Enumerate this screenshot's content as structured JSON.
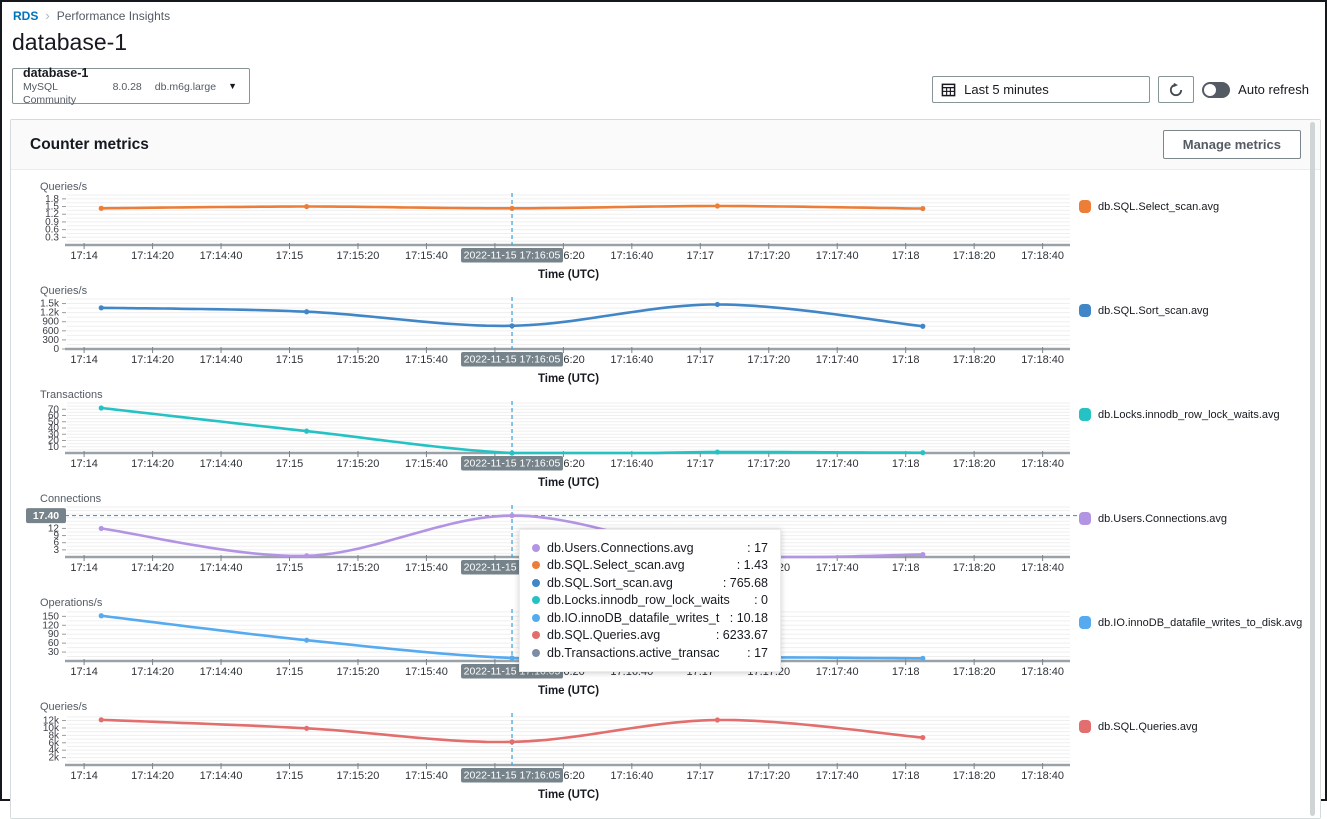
{
  "breadcrumb": {
    "root": "RDS",
    "separator": "›",
    "current": "Performance Insights"
  },
  "page": {
    "title": "database-1"
  },
  "instance_selector": {
    "name": "database-1",
    "engine": "MySQL Community",
    "version": "8.0.28",
    "instance_class": "db.m6g.large",
    "caret": "▼"
  },
  "controls": {
    "time_range": "Last 5 minutes",
    "auto_refresh_label": "Auto refresh"
  },
  "panel": {
    "title": "Counter metrics",
    "manage_button": "Manage metrics"
  },
  "crosshair": {
    "timestamp_label": "2022-11-15 17:16:05",
    "color": "#3aa0d8",
    "badge_color": "#76838a"
  },
  "tooltip": {
    "rows": [
      {
        "color": "#b394e3",
        "name": "db.Users.Connections.avg",
        "value": ": 17"
      },
      {
        "color": "#ec7e38",
        "name": "db.SQL.Select_scan.avg",
        "value": ": 1.43"
      },
      {
        "color": "#4186c6",
        "name": "db.SQL.Sort_scan.avg",
        "value": ": 765.68"
      },
      {
        "color": "#25c2c4",
        "name": "db.Locks.innodb_row_lock_waits",
        "value": ": 0"
      },
      {
        "color": "#55aaf0",
        "name": "db.IO.innoDB_datafile_writes_t",
        "value": ": 10.18"
      },
      {
        "color": "#e26e6e",
        "name": "db.SQL.Queries.avg",
        "value": ": 6233.67"
      },
      {
        "color": "#7d8ca6",
        "name": "db.Transactions.active_transac",
        "value": ": 17"
      }
    ]
  },
  "chart_data": [
    {
      "type": "line",
      "ylabel": "Queries/s",
      "xlabel": "Time (UTC)",
      "ylim": [
        0,
        1.95
      ],
      "y_ticks": [
        0.3,
        0.6,
        0.9,
        1.2,
        1.5,
        1.8
      ],
      "y_tick_labels": [
        "0.3",
        "0.6",
        "0.9",
        "1.2",
        "1.5",
        "1.8"
      ],
      "x_tick_seconds": [
        0,
        20,
        40,
        60,
        80,
        100,
        120,
        140,
        160,
        180,
        200,
        220,
        240,
        260,
        280
      ],
      "x_tick_labels": [
        "17:14",
        "17:14:20",
        "17:14:40",
        "17:15",
        "17:15:20",
        "17:15:40",
        "17:16",
        "17:16:20",
        "17:16:40",
        "17:17",
        "17:17:20",
        "17:17:40",
        "17:18",
        "17:18:20",
        "17:18:40"
      ],
      "crosshair_x_seconds": 125,
      "series": [
        {
          "name": "db.SQL.Select_scan.avg",
          "color": "#ec7e38",
          "x_seconds": [
            5,
            65,
            125,
            185,
            245
          ],
          "values": [
            1.43,
            1.5,
            1.43,
            1.52,
            1.42
          ]
        }
      ]
    },
    {
      "type": "line",
      "ylabel": "Queries/s",
      "xlabel": "Time (UTC)",
      "ylim": [
        0,
        1650
      ],
      "y_ticks": [
        0,
        300,
        600,
        900,
        1200,
        1500
      ],
      "y_tick_labels": [
        "0",
        "300",
        "600",
        "900",
        "1.2k",
        "1.5k"
      ],
      "x_tick_seconds": [
        0,
        20,
        40,
        60,
        80,
        100,
        120,
        140,
        160,
        180,
        200,
        220,
        240,
        260,
        280
      ],
      "x_tick_labels": [
        "17:14",
        "17:14:20",
        "17:14:40",
        "17:15",
        "17:15:20",
        "17:15:40",
        "17:16",
        "17:16:20",
        "17:16:40",
        "17:17",
        "17:17:20",
        "17:17:40",
        "17:18",
        "17:18:20",
        "17:18:40"
      ],
      "crosshair_x_seconds": 125,
      "series": [
        {
          "name": "db.SQL.Sort_scan.avg",
          "color": "#4186c6",
          "x_seconds": [
            5,
            65,
            125,
            185,
            245
          ],
          "values": [
            1360,
            1230,
            765.68,
            1470,
            750
          ]
        }
      ]
    },
    {
      "type": "line",
      "ylabel": "Transactions",
      "xlabel": "Time (UTC)",
      "ylim": [
        0,
        80
      ],
      "y_ticks": [
        10,
        20,
        30,
        40,
        50,
        60,
        70
      ],
      "y_tick_labels": [
        "10",
        "20",
        "30",
        "40",
        "50",
        "60",
        "70"
      ],
      "x_tick_seconds": [
        0,
        20,
        40,
        60,
        80,
        100,
        120,
        140,
        160,
        180,
        200,
        220,
        240,
        260,
        280
      ],
      "x_tick_labels": [
        "17:14",
        "17:14:20",
        "17:14:40",
        "17:15",
        "17:15:20",
        "17:15:40",
        "17:16",
        "17:16:20",
        "17:16:40",
        "17:17",
        "17:17:20",
        "17:17:40",
        "17:18",
        "17:18:20",
        "17:18:40"
      ],
      "crosshair_x_seconds": 125,
      "series": [
        {
          "name": "db.Locks.innodb_row_lock_waits.avg",
          "color": "#25c2c4",
          "x_seconds": [
            5,
            65,
            125,
            185,
            245
          ],
          "values": [
            72,
            35,
            0,
            1.5,
            0.5
          ]
        }
      ]
    },
    {
      "type": "line",
      "ylabel": "Connections",
      "xlabel": "Time (UTC)",
      "ylim": [
        0,
        21
      ],
      "y_ticks": [
        3,
        6,
        9,
        12
      ],
      "y_tick_labels": [
        "3",
        "6",
        "9",
        "12"
      ],
      "x_tick_seconds": [
        0,
        20,
        40,
        60,
        80,
        100,
        120,
        140,
        160,
        180,
        200,
        220,
        240,
        260,
        280
      ],
      "x_tick_labels": [
        "17:14",
        "17:14:20",
        "17:14:40",
        "17:15",
        "17:15:20",
        "17:15:40",
        "17:16",
        "17:16:20",
        "17:16:40",
        "17:17",
        "17:17:20",
        "17:17:40",
        "17:18",
        "17:18:20",
        "17:18:40"
      ],
      "crosshair_x_seconds": 125,
      "hline": {
        "value": 17.4,
        "label": "17.40"
      },
      "series": [
        {
          "name": "db.Users.Connections.avg",
          "color": "#b394e3",
          "x_seconds": [
            5,
            65,
            125,
            185,
            245
          ],
          "values": [
            12,
            0.5,
            17.4,
            1.2,
            1
          ]
        }
      ]
    },
    {
      "type": "line",
      "ylabel": "Operations/s",
      "xlabel": "Time (UTC)",
      "ylim": [
        0,
        168
      ],
      "y_ticks": [
        30,
        60,
        90,
        120,
        150
      ],
      "y_tick_labels": [
        "30",
        "60",
        "90",
        "120",
        "150"
      ],
      "x_tick_seconds": [
        0,
        20,
        40,
        60,
        80,
        100,
        120,
        140,
        160,
        180,
        200,
        220,
        240,
        260,
        280
      ],
      "x_tick_labels": [
        "17:14",
        "17:14:20",
        "17:14:40",
        "17:15",
        "17:15:20",
        "17:15:40",
        "17:16",
        "17:16:20",
        "17:16:40",
        "17:17",
        "17:17:20",
        "17:17:40",
        "17:18",
        "17:18:20",
        "17:18:40"
      ],
      "crosshair_x_seconds": 125,
      "series": [
        {
          "name": "db.IO.innoDB_datafile_writes_to_disk.avg",
          "color": "#55aaf0",
          "x_seconds": [
            5,
            65,
            125,
            185,
            245
          ],
          "values": [
            152,
            70,
            10.18,
            13,
            9
          ]
        }
      ]
    },
    {
      "type": "line",
      "ylabel": "Queries/s",
      "xlabel": "Time (UTC)",
      "ylim": [
        0,
        13500
      ],
      "y_ticks": [
        2000,
        4000,
        6000,
        8000,
        10000,
        12000
      ],
      "y_tick_labels": [
        "2k",
        "4k",
        "6k",
        "8k",
        "10k",
        "12k"
      ],
      "x_tick_seconds": [
        0,
        20,
        40,
        60,
        80,
        100,
        120,
        140,
        160,
        180,
        200,
        220,
        240,
        260,
        280
      ],
      "x_tick_labels": [
        "17:14",
        "17:14:20",
        "17:14:40",
        "17:15",
        "17:15:20",
        "17:15:40",
        "17:16",
        "17:16:20",
        "17:16:40",
        "17:17",
        "17:17:20",
        "17:17:40",
        "17:18",
        "17:18:20",
        "17:18:40"
      ],
      "crosshair_x_seconds": 125,
      "series": [
        {
          "name": "db.SQL.Queries.avg",
          "color": "#e26e6e",
          "x_seconds": [
            5,
            65,
            125,
            185,
            245
          ],
          "values": [
            12200,
            9900,
            6233.67,
            12150,
            7400
          ]
        }
      ]
    }
  ]
}
